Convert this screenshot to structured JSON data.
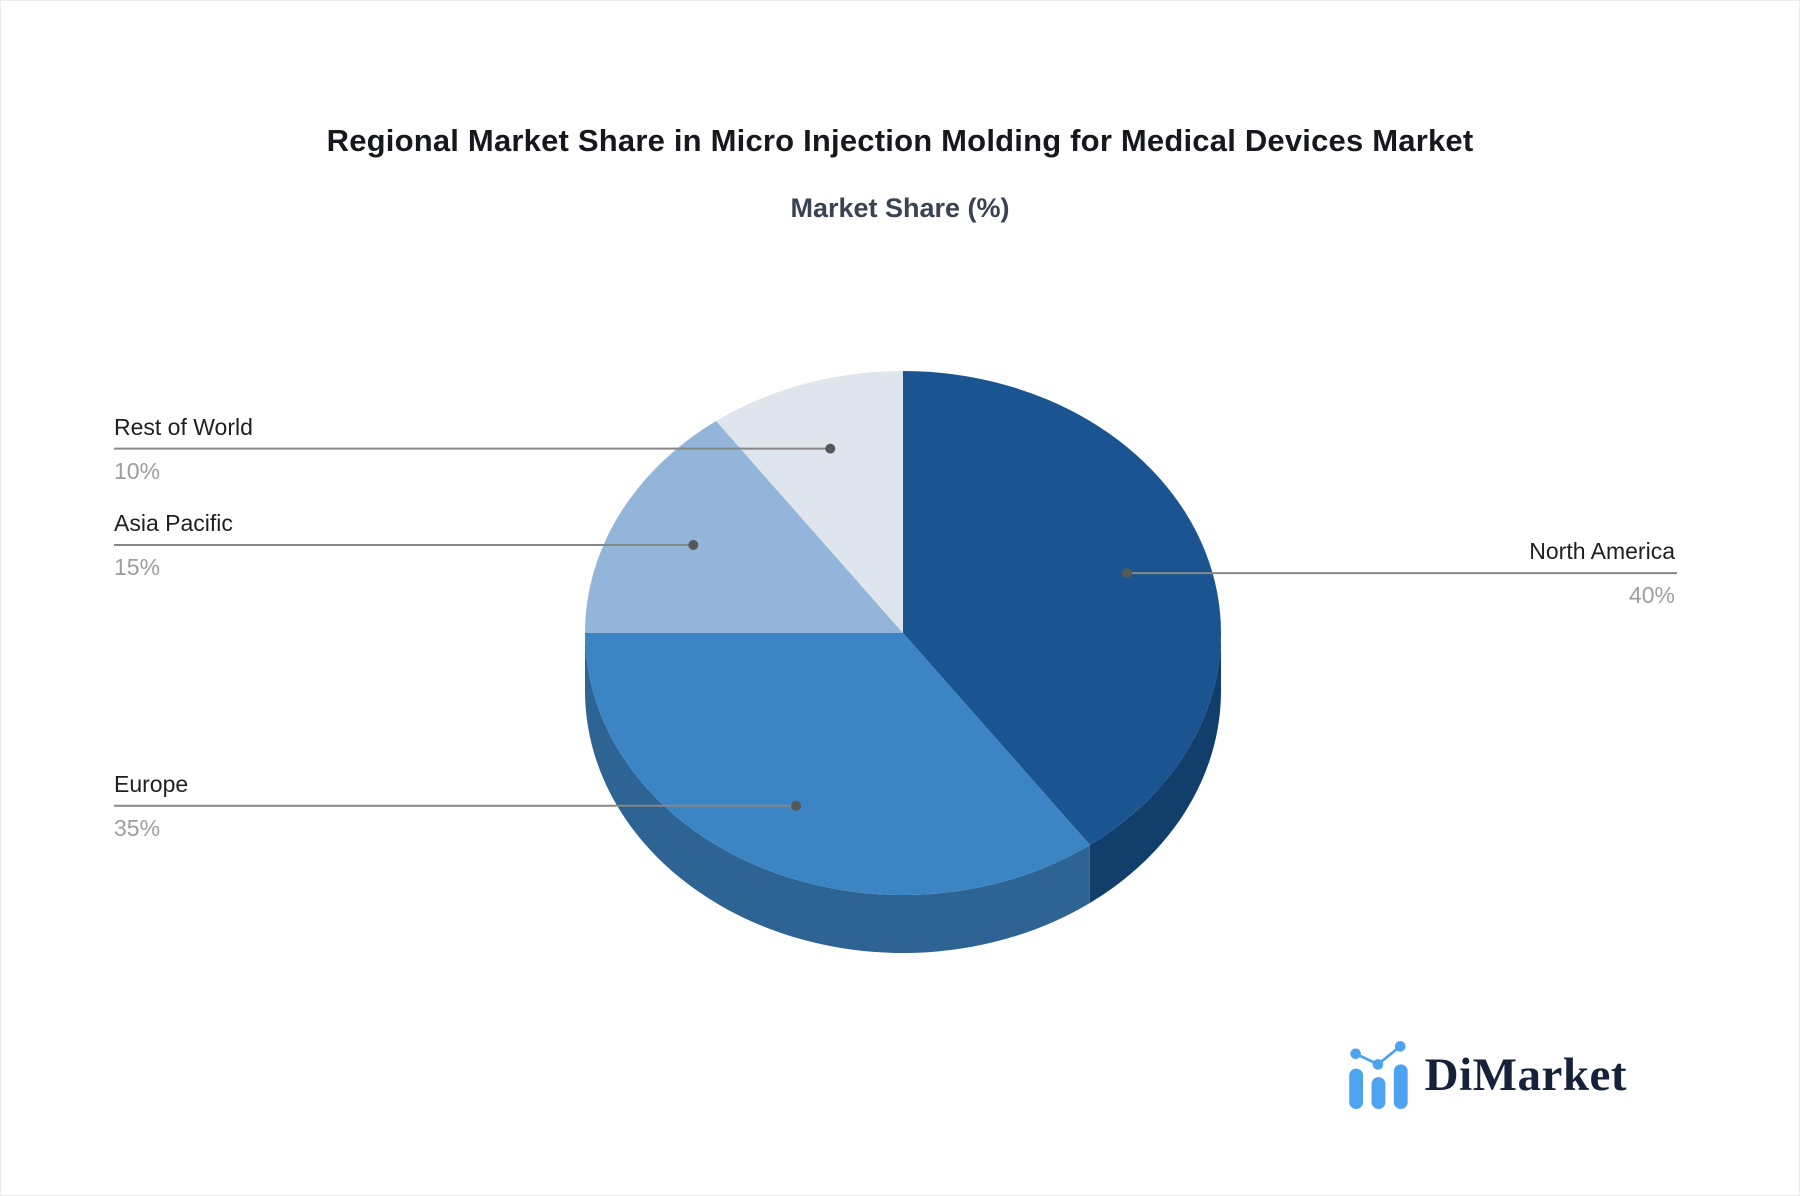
{
  "title": "Regional Market Share in Micro Injection Molding for Medical Devices Market",
  "subtitle": "Market Share (%)",
  "brand": {
    "name": "DiMarket",
    "icon": "bar-chart-logo-icon",
    "text_color": "#16223a",
    "icon_color": "#4da3f0"
  },
  "chart_data": {
    "type": "pie",
    "style": "3d",
    "title": "Regional Market Share in Micro Injection Molding for Medical Devices Market",
    "subtitle": "Market Share (%)",
    "unit": "%",
    "start_angle_deg": 0,
    "direction": "clockwise",
    "legend_position": "callout-labels",
    "slices": [
      {
        "label": "North America",
        "value": 40,
        "color": "#1b5591",
        "side_color": "#123e6b",
        "label_side": "right"
      },
      {
        "label": "Europe",
        "value": 35,
        "color": "#3c85c4",
        "side_color": "#2d6494",
        "label_side": "left"
      },
      {
        "label": "Asia Pacific",
        "value": 15,
        "color": "#93b5da",
        "side_color": "#6e8dad",
        "label_side": "left"
      },
      {
        "label": "Rest of World",
        "value": 10,
        "color": "#dfe5ed",
        "side_color": "#a8b3c2",
        "label_side": "left"
      }
    ]
  },
  "colors": {
    "background": "#ffffff",
    "title_text": "#16181d",
    "subtitle_text": "#3a4254",
    "label_text": "#1f1f1f",
    "percent_text": "#9e9e9e",
    "leader_line": "#878787",
    "leader_dot": "#575757"
  }
}
